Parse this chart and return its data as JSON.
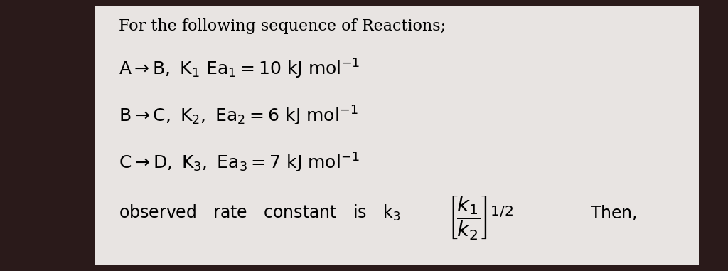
{
  "background_color": "#2a1a1a",
  "panel_color": "#e8e4e2",
  "title": "For the following sequence of Reactions;",
  "font_size_title": 16,
  "font_size_body": 18,
  "font_size_bottom": 17
}
